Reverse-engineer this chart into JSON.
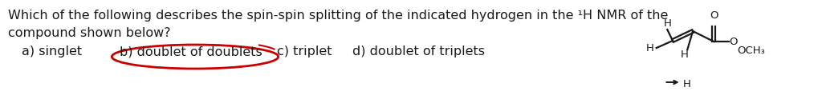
{
  "background_color": "#ffffff",
  "main_text_line1": "Which of the following describes the spin-spin splitting of the indicated hydrogen in the ¹H NMR of the",
  "main_text_line2": "compound shown below?",
  "option_a": "a) singlet",
  "option_b": "b) doublet of doublets",
  "option_c": "c) triplet",
  "option_d": "d) doublet of triplets",
  "circle_color": "#cc0000",
  "text_color": "#1a1a1a",
  "font_size_main": 11.5,
  "font_size_options": 11.5,
  "struct_lw": 1.6,
  "struct_lc": "#1a1a1a",
  "struct_fs": 9.5
}
